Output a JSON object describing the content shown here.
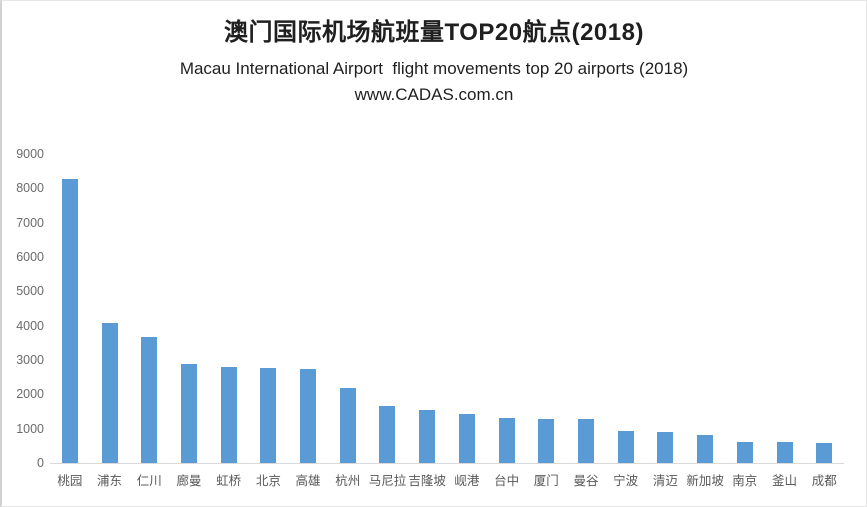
{
  "chart_data": {
    "type": "bar",
    "title": "澳门国际机场航班量TOP20航点(2018)",
    "subtitle": "Macau International Airport  flight movements top 20 airports (2018)",
    "source": "www.CADAS.com.cn",
    "categories": [
      "桃园",
      "浦东",
      "仁川",
      "廊曼",
      "虹桥",
      "北京",
      "高雄",
      "杭州",
      "马尼拉",
      "吉隆坡",
      "岘港",
      "台中",
      "厦门",
      "曼谷",
      "宁波",
      "清迈",
      "新加坡",
      "南京",
      "釜山",
      "成都"
    ],
    "values": [
      8270,
      4090,
      3680,
      2890,
      2810,
      2760,
      2730,
      2190,
      1660,
      1540,
      1430,
      1300,
      1280,
      1270,
      930,
      900,
      820,
      600,
      600,
      580
    ],
    "xlabel": "",
    "ylabel": "",
    "ylim": [
      0,
      9000
    ],
    "yticks": [
      0,
      1000,
      2000,
      3000,
      4000,
      5000,
      6000,
      7000,
      8000,
      9000
    ],
    "grid": false,
    "legend": false,
    "bar_color": "#5B9BD5",
    "axis_line_color": "#D9D9D9",
    "tick_label_color": "#595959",
    "title_color": "#1f1f1f"
  }
}
